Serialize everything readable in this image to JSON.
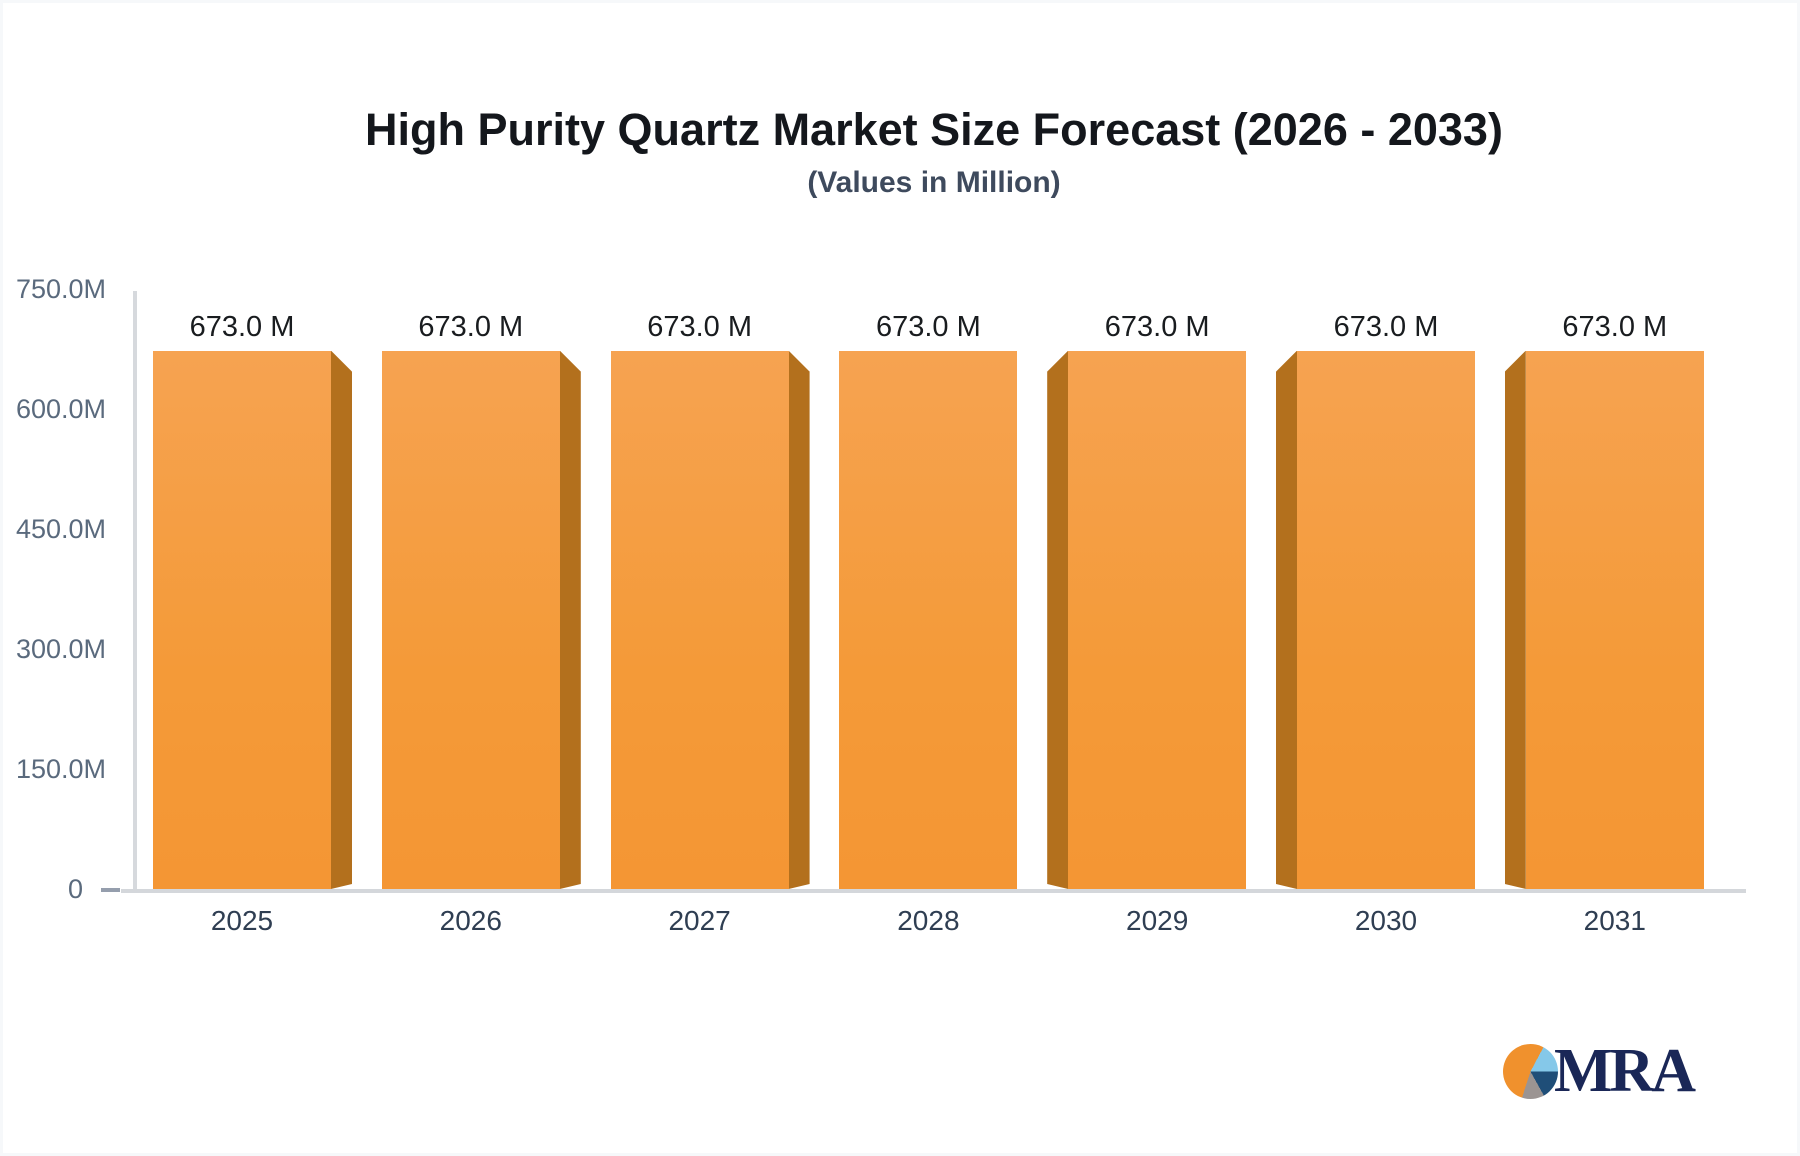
{
  "header": {
    "title": "High Purity Quartz Market Size Forecast (2026 - 2033)",
    "subtitle": "(Values in Million)"
  },
  "chart_data": {
    "type": "bar",
    "title": "High Purity Quartz Market Size Forecast (2026 - 2033)",
    "subtitle": "(Values in Million)",
    "categories": [
      "2025",
      "2026",
      "2027",
      "2028",
      "2029",
      "2030",
      "2031"
    ],
    "values": [
      673,
      673,
      673,
      673,
      673,
      673,
      673
    ],
    "value_labels": [
      "673.0 M",
      "673.0 M",
      "673.0 M",
      "673.0 M",
      "673.0 M",
      "673.0 M",
      "673.0 M"
    ],
    "xlabel": "",
    "ylabel": "",
    "ylim": [
      0,
      750
    ],
    "yticks": [
      750,
      600,
      450,
      300,
      150,
      0
    ],
    "ytick_labels": [
      "750.0M",
      "600.0M",
      "450.0M",
      "300.0M",
      "150.0M",
      "0"
    ],
    "grid": "off",
    "legend": "none",
    "style": "3d-perspective-bars-center-vanishing-point"
  },
  "colors": {
    "bar_face_top": "#f6a351",
    "bar_face_bottom": "#f49634",
    "bar_side": "#b3701d",
    "axis_line": "#d5d8dc",
    "zero_tick": "#959ead",
    "ytick_text": "#5a6a7d",
    "xtick_text": "#2f3e52",
    "value_text": "#191c1f",
    "title_text": "#14171c",
    "subtitle_text": "#3e4a5d",
    "logo_text": "#1a2757"
  },
  "logo": {
    "text": "MRA",
    "pie_icon_colors": {
      "orange": "#f0912d",
      "light_blue": "#85c8e9",
      "dark_blue": "#1f4e78",
      "gray": "#9b9492"
    }
  }
}
